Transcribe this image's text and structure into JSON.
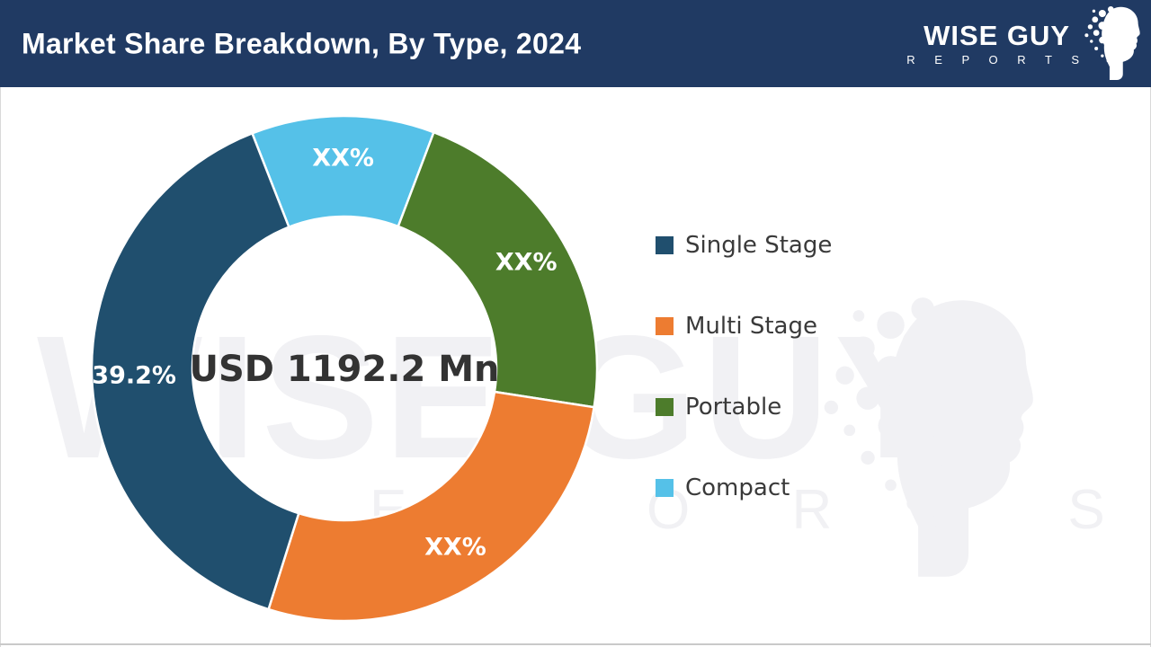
{
  "header": {
    "title": "Market Share Breakdown, By Type, 2024",
    "bg_color": "#203A63",
    "logo": {
      "brand": "WISE GUY",
      "sub": "R E P O R T S"
    }
  },
  "watermark": {
    "primary": "WISE GUY",
    "secondary": "R E P O R T S"
  },
  "chart_data": {
    "type": "pie",
    "variant": "donut",
    "title": "Market Share Breakdown, By Type, 2024",
    "center_label": "USD 1192.2 Mn",
    "start_angle_deg": -21.4,
    "legend_position": "right",
    "segments": [
      {
        "label": "Compact",
        "display_value": "XX%",
        "percent": 11.7,
        "color": "#55C1E8"
      },
      {
        "label": "Portable",
        "display_value": "XX%",
        "percent": 21.7,
        "color": "#4D7C2B"
      },
      {
        "label": "Multi Stage",
        "display_value": "XX%",
        "percent": 27.4,
        "color": "#ED7C31"
      },
      {
        "label": "Single Stage",
        "display_value": "39.2%",
        "percent": 39.2,
        "color": "#204F6E"
      }
    ],
    "legend_order": [
      3,
      2,
      1,
      0
    ]
  },
  "colors": {
    "segment_divider": "#ffffff",
    "center_text": "#333333",
    "legend_text": "#3A3A3A",
    "watermark": "#F1F1F4",
    "border_line": "#c9c9c9"
  }
}
